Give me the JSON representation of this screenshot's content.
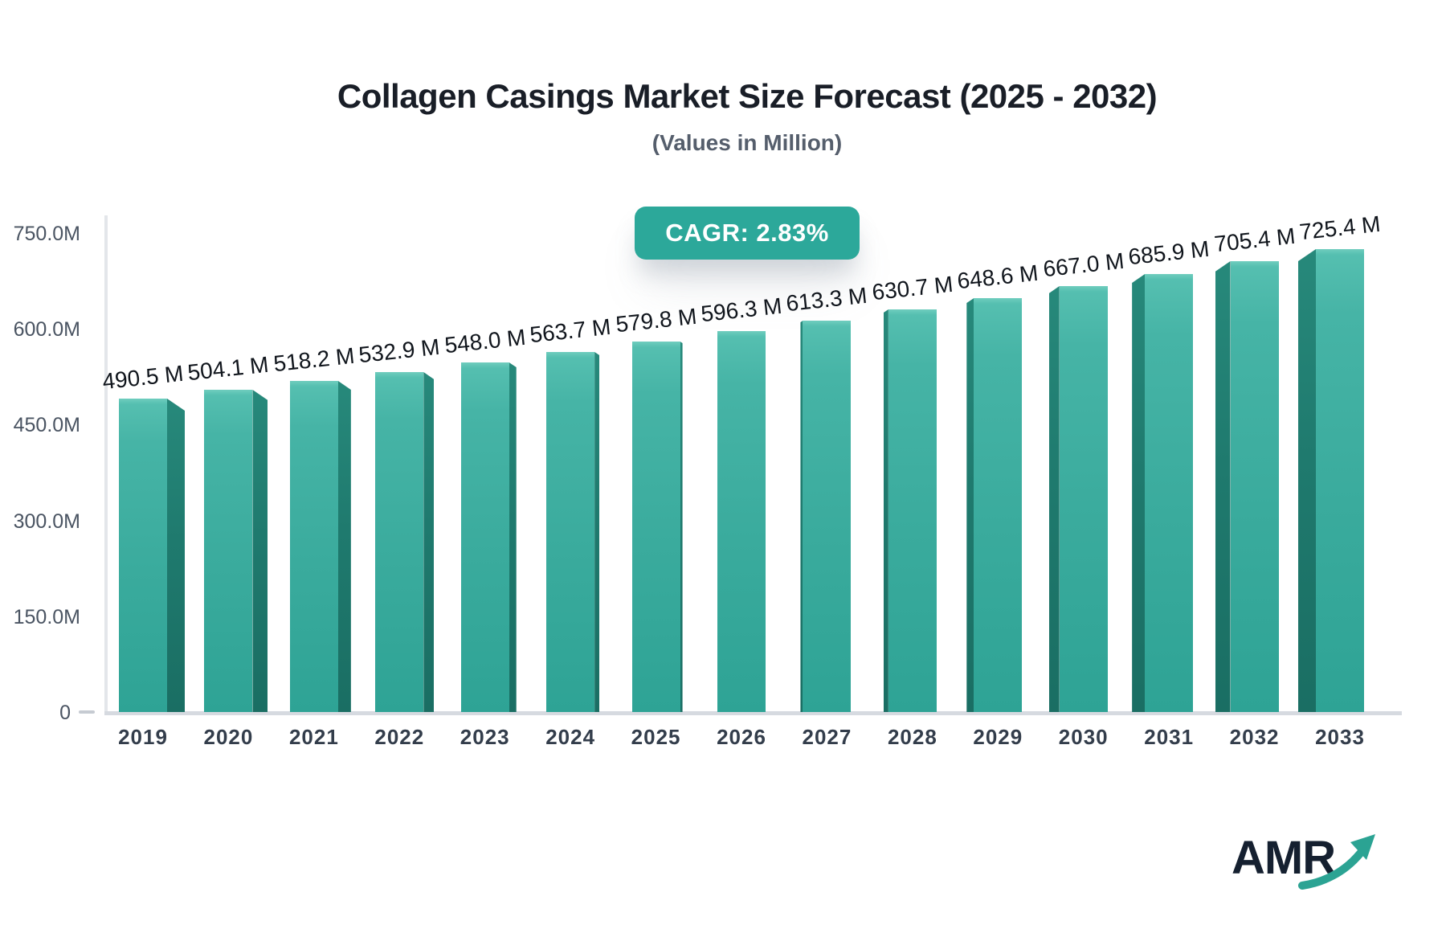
{
  "header": {
    "title": "Collagen Casings Market Size Forecast (2025 - 2032)",
    "subtitle": "(Values in Million)"
  },
  "badge": {
    "label": "CAGR: 2.83%",
    "background": "#2CA89A"
  },
  "logo": {
    "text": "AMR",
    "icon": "growth-arrow-icon",
    "text_color": "#152030",
    "arrow_color": "#2BA393"
  },
  "colors": {
    "bar_front": "#35A99B",
    "bar_front_highlight": "#6FCDBE",
    "bar_side": "#20796D",
    "axis_line": "#E3E6EA",
    "baseline": "#D6DAE0",
    "title_text": "#191E27",
    "subtitle_text": "#555E6C",
    "tick_text": "#4A5462",
    "year_text": "#333D4B",
    "value_text": "#10151C"
  },
  "chart_data": {
    "type": "bar",
    "title": "Collagen Casings Market Size Forecast (2025 - 2032)",
    "subtitle": "(Values in Million)",
    "annotation": "CAGR: 2.83%",
    "categories": [
      "2019",
      "2020",
      "2021",
      "2022",
      "2023",
      "2024",
      "2025",
      "2026",
      "2027",
      "2028",
      "2029",
      "2030",
      "2031",
      "2032",
      "2033"
    ],
    "values": [
      490.5,
      504.1,
      518.2,
      532.9,
      548.0,
      563.7,
      579.8,
      596.3,
      613.3,
      630.7,
      648.6,
      667.0,
      685.9,
      705.4,
      725.4
    ],
    "value_suffix": " M",
    "unit": "Million",
    "ylim": [
      0,
      750
    ],
    "y_ticks": [
      {
        "value": 0,
        "label": "0"
      },
      {
        "value": 150,
        "label": "150.0M"
      },
      {
        "value": 300,
        "label": "300.0M"
      },
      {
        "value": 450,
        "label": "450.0M"
      },
      {
        "value": 600,
        "label": "600.0M"
      },
      {
        "value": 750,
        "label": "750.0M"
      }
    ],
    "grid": false,
    "legend": false,
    "bar_style": "3d-perspective-center"
  }
}
